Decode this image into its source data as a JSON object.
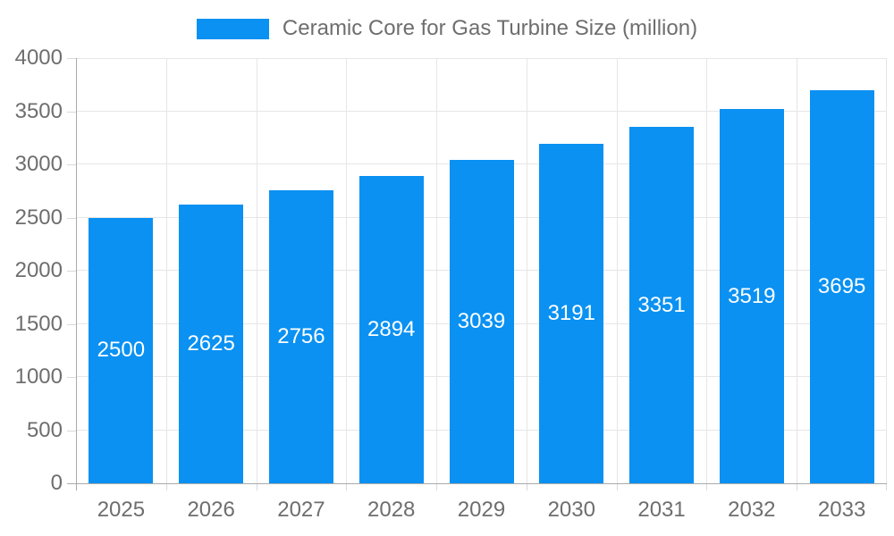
{
  "legend": {
    "label": "Ceramic Core for Gas Turbine Size (million)"
  },
  "chart_data": {
    "type": "bar",
    "title": "Ceramic Core for Gas Turbine Size (million)",
    "categories": [
      "2025",
      "2026",
      "2027",
      "2028",
      "2029",
      "2030",
      "2031",
      "2032",
      "2033"
    ],
    "values": [
      2500,
      2625,
      2756,
      2894,
      3039,
      3191,
      3351,
      3519,
      3695
    ],
    "series": [
      {
        "name": "Ceramic Core for Gas Turbine Size (million)",
        "values": [
          2500,
          2625,
          2756,
          2894,
          3039,
          3191,
          3351,
          3519,
          3695
        ]
      }
    ],
    "xlabel": "",
    "ylabel": "",
    "ylim": [
      0,
      4000
    ],
    "ytick_step": 500,
    "yticks": [
      0,
      500,
      1000,
      1500,
      2000,
      2500,
      3000,
      3500,
      4000
    ],
    "grid": true,
    "legend_position": "top",
    "value_label_position": "inside-center",
    "colors": {
      "bar": "#0a91f2",
      "grid": "#e6e6e6",
      "axis": "#aaaaaa",
      "tick": "#d9d9d9",
      "text": "#6e6e6e",
      "value_label": "#ffffff",
      "background": "#ffffff"
    }
  }
}
